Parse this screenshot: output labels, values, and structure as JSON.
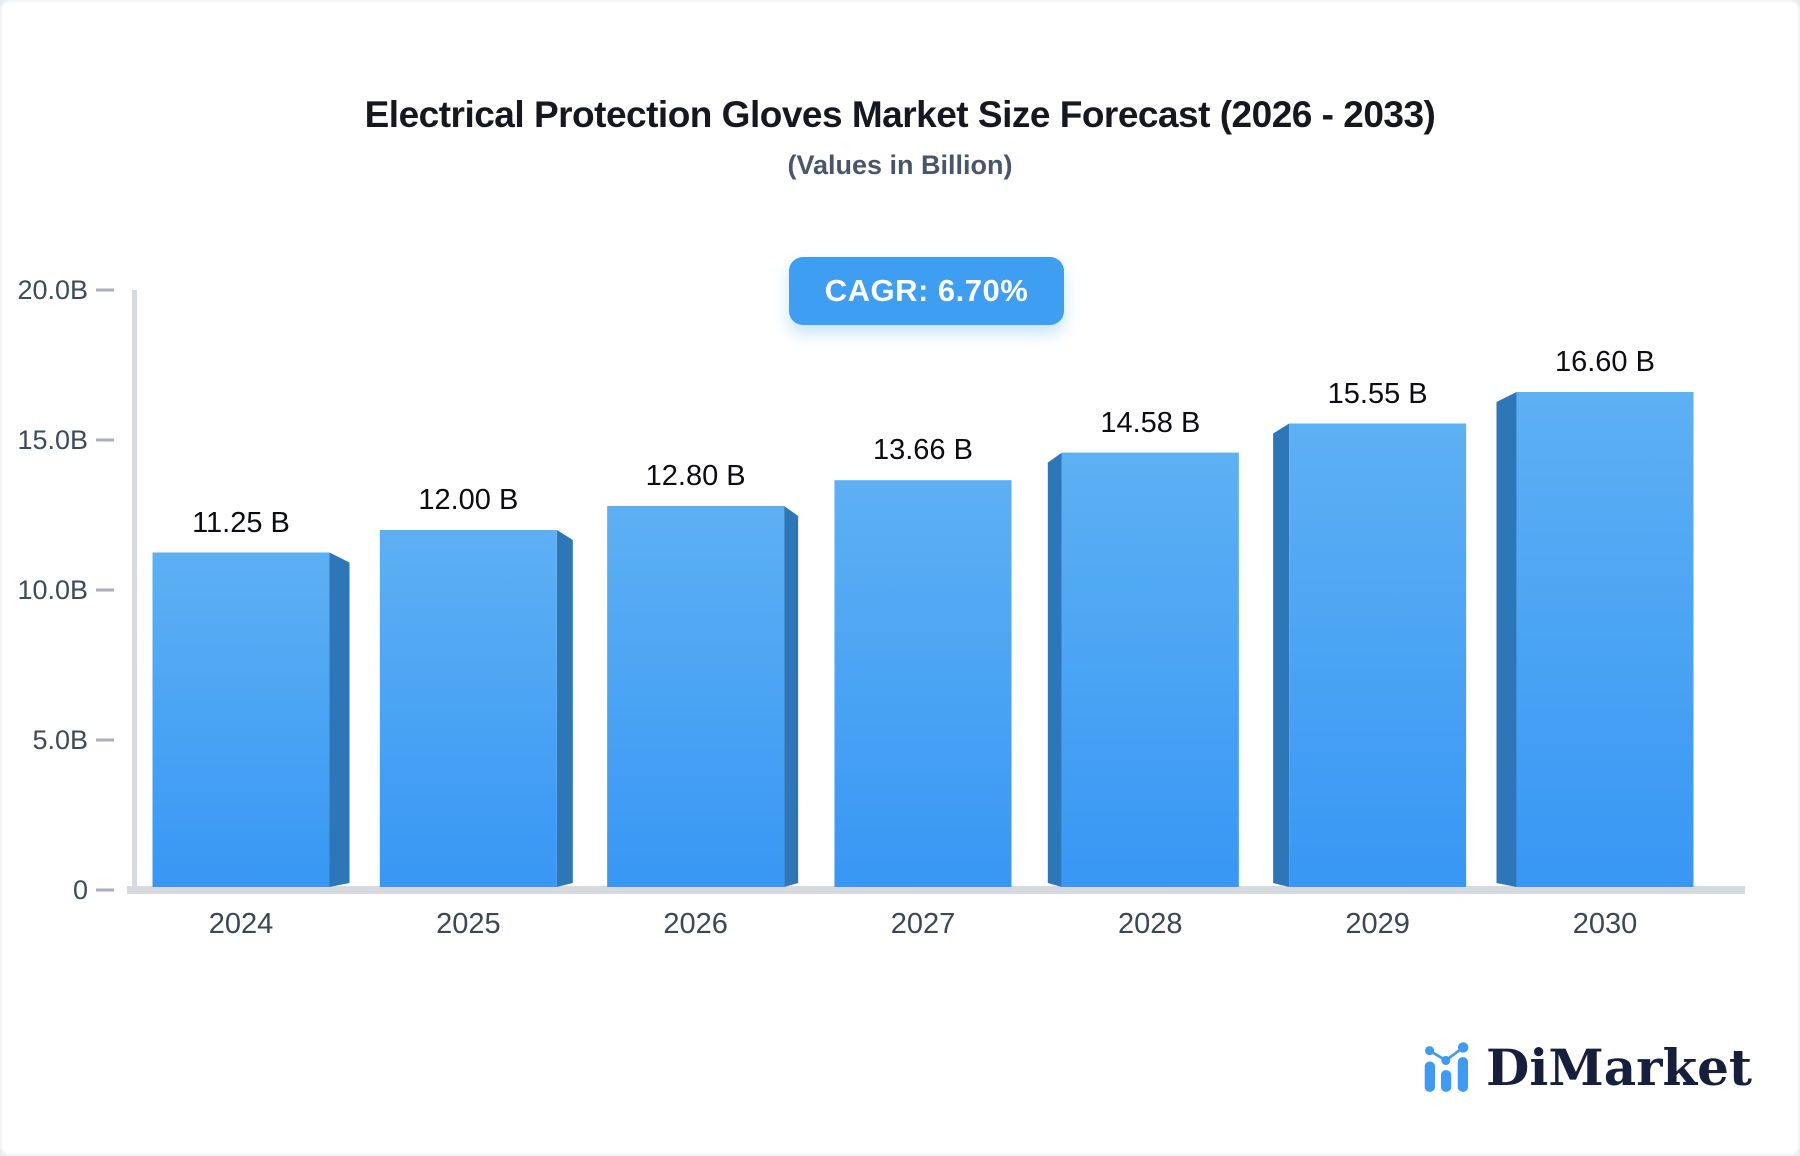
{
  "page": {
    "title": "Electrical Protection Gloves Market Size Forecast (2026 - 2033)",
    "subtitle": "(Values in Billion)",
    "cagr_label": "CAGR: 6.70%"
  },
  "chart_data": {
    "type": "bar",
    "title": "Electrical Protection Gloves Market Size Forecast (2026 - 2033)",
    "subtitle": "(Values in Billion)",
    "cagr_percent": 6.7,
    "unit": "Billion",
    "categories": [
      "2024",
      "2025",
      "2026",
      "2027",
      "2028",
      "2029",
      "2030"
    ],
    "values": [
      11.25,
      12.0,
      12.8,
      13.66,
      14.58,
      15.55,
      16.6
    ],
    "value_labels": [
      "11.25 B",
      "12.00 B",
      "12.80 B",
      "13.66 B",
      "14.58 B",
      "15.55 B",
      "16.60 B"
    ],
    "xlabel": "",
    "ylabel": "",
    "ylim": [
      0,
      20
    ],
    "yticks": [
      {
        "value": 20,
        "label": "20.0B"
      },
      {
        "value": 15,
        "label": "15.0B"
      },
      {
        "value": 10,
        "label": "10.0B"
      },
      {
        "value": 5,
        "label": "5.0B"
      },
      {
        "value": 0,
        "label": "0"
      }
    ],
    "grid": false,
    "legend": null,
    "style": "3d-perspective-bars",
    "colors": {
      "bar_face_top": "#5db0f3",
      "bar_face_bottom": "#3897f4",
      "bar_side": "#2d76b8",
      "axis_line": "#d6d9df",
      "tick_dash": "#a9b0bc",
      "tick_label": "#3d4a5c",
      "value_label": "#0c0d12",
      "badge_bg": "#3d9ef2",
      "badge_text": "#ffffff"
    }
  },
  "logo": {
    "text": "DiMarket",
    "icon": "bar-chart-logo-icon",
    "icon_color": "#3f9af4",
    "text_color": "#16203c"
  }
}
